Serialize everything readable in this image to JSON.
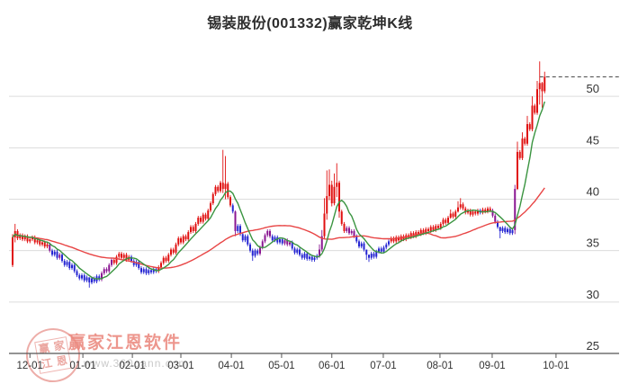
{
  "title": "锡装股份(001332)赢家乾坤K线",
  "watermark": {
    "brand": "赢家江恩软件",
    "url": "www.360gann.com",
    "seal_chars": [
      "赢",
      "家",
      "江",
      "恩"
    ]
  },
  "colors": {
    "up_candle": "#e01010",
    "down_candle": "#2525d2",
    "pivot_candle": "#8a1692",
    "ma_short": "#3a9440",
    "ma_long": "#e84545",
    "grid": "#dcdcdc",
    "axis": "#555555",
    "tick_label": "#333333",
    "dashed_line": "#555555",
    "background": "#ffffff",
    "title_color": "#2d2d2d"
  },
  "chart_data": {
    "type": "candlestick",
    "title": "锡装股份(001332)赢家乾坤K线",
    "y_ticks": [
      25,
      30,
      35,
      40,
      45,
      50
    ],
    "ylim": [
      25,
      55
    ],
    "y_axis_side": "right",
    "grid": true,
    "x_ticks": [
      {
        "label": "12-01",
        "day": 7
      },
      {
        "label": "01-01",
        "day": 28.4
      },
      {
        "label": "02-01",
        "day": 48.4
      },
      {
        "label": "03-01",
        "day": 68
      },
      {
        "label": "04-01",
        "day": 88.4
      },
      {
        "label": "05-01",
        "day": 108.7
      },
      {
        "label": "06-01",
        "day": 129
      },
      {
        "label": "07-01",
        "day": 149.8
      },
      {
        "label": "08-01",
        "day": 172.7
      },
      {
        "label": "09-01",
        "day": 193.8
      },
      {
        "label": "10-01",
        "day": 219.6
      }
    ],
    "last_price": 51.9,
    "first_open": 33.6,
    "default_wick": 0.18,
    "ma_short_period": 8,
    "ma_long_period": 42,
    "closes": [
      36.3,
      36.9,
      36.2,
      36.5,
      36.1,
      36.4,
      35.9,
      36.1,
      36.3,
      35.8,
      36.0,
      35.6,
      35.8,
      35.4,
      35.6,
      35.0,
      34.6,
      34.9,
      34.3,
      34.6,
      34.0,
      33.6,
      33.9,
      33.3,
      33.6,
      33.0,
      32.6,
      32.3,
      32.6,
      32.1,
      32.4,
      31.9,
      32.3,
      32.0,
      32.5,
      32.2,
      32.8,
      33.2,
      33.0,
      33.6,
      34.1,
      33.8,
      34.4,
      34.7,
      34.3,
      34.6,
      34.1,
      34.4,
      34.0,
      33.6,
      33.9,
      33.3,
      32.9,
      33.2,
      32.8,
      33.1,
      32.9,
      33.2,
      33.0,
      33.4,
      33.8,
      34.3,
      34.0,
      34.6,
      35.1,
      34.8,
      35.6,
      36.2,
      35.8,
      36.4,
      36.1,
      36.8,
      37.3,
      36.9,
      37.6,
      38.2,
      37.8,
      38.5,
      38.1,
      38.9,
      39.6,
      40.5,
      41.2,
      40.8,
      41.6,
      41.0,
      41.5,
      40.2,
      39.4,
      38.8,
      36.9,
      37.4,
      36.6,
      36.0,
      36.4,
      35.6,
      35.0,
      34.5,
      35.0,
      34.7,
      35.3,
      35.9,
      36.5,
      36.9,
      36.4,
      36.0,
      36.3,
      35.8,
      36.1,
      35.7,
      36.0,
      35.6,
      35.8,
      35.2,
      34.8,
      35.1,
      34.6,
      34.3,
      34.7,
      34.2,
      34.4,
      34.1,
      34.3,
      34.5,
      35.1,
      36.4,
      38.6,
      40.3,
      41.4,
      39.6,
      41.2,
      41.6,
      38.8,
      37.6,
      36.9,
      37.2,
      36.7,
      36.9,
      36.4,
      35.9,
      35.4,
      35.7,
      35.1,
      34.6,
      34.3,
      34.7,
      34.4,
      34.9,
      35.2,
      34.9,
      35.3,
      35.6,
      35.9,
      36.2,
      35.9,
      36.3,
      36.0,
      36.4,
      36.1,
      36.5,
      36.3,
      36.7,
      36.4,
      36.8,
      36.6,
      37.0,
      36.7,
      37.1,
      36.9,
      37.3,
      37.0,
      37.4,
      37.2,
      37.6,
      38.0,
      37.7,
      38.2,
      38.6,
      38.3,
      38.8,
      39.2,
      39.5,
      39.1,
      38.7,
      38.9,
      38.5,
      38.8,
      38.6,
      38.9,
      38.7,
      39.0,
      38.8,
      39.1,
      38.9,
      38.4,
      37.8,
      37.3,
      36.9,
      37.2,
      36.8,
      37.1,
      36.7,
      37.0,
      41.0,
      44.6,
      44.0,
      45.9,
      45.4,
      47.3,
      46.8,
      49.1,
      48.4,
      50.7,
      51.3,
      50.5,
      51.9
    ],
    "candle_colors": "rrrrrrrrrrrrrrrpbbbpbbbbbbbbbbbbbbbbppppprrrrrrrbbbbbbbbbbbrrrrrrrrrrrrrrrrrrrrrrrrrrrrrrbpbbbbbbbbbpppppbbbbbpppbbbbbbbbbbbpprrrrrrrrrppppbbbbbbbbbbbbbbrrrrrrrrrrrrrrrrrrrrrrrrrrrrrrrrrrrrbrrrrppbbbbbbbprrrrrrrrrrrr",
    "wick_overrides": {
      "0": [
        36.6,
        33.4
      ],
      "1": [
        37.6,
        35.8
      ],
      "31": [
        32.4,
        31.4
      ],
      "85": [
        44.8,
        40.6
      ],
      "86": [
        44.2,
        40.0
      ],
      "90": [
        38.9,
        36.4
      ],
      "97": [
        35.2,
        34.0
      ],
      "124": [
        35.6,
        34.3
      ],
      "125": [
        37.0,
        34.9
      ],
      "126": [
        40.1,
        36.2
      ],
      "127": [
        42.8,
        38.0
      ],
      "128": [
        42.9,
        39.9
      ],
      "129": [
        41.8,
        39.3
      ],
      "130": [
        42.5,
        39.4
      ],
      "131": [
        43.5,
        40.2
      ],
      "132": [
        41.8,
        38.2
      ],
      "143": [
        34.9,
        34.1
      ],
      "144": [
        34.6,
        33.9
      ],
      "177": [
        39.0,
        38.1
      ],
      "180": [
        39.8,
        38.7
      ],
      "181": [
        40.1,
        39.0
      ],
      "197": [
        37.3,
        36.2
      ],
      "203": [
        41.4,
        36.6
      ],
      "204": [
        45.6,
        40.9
      ],
      "206": [
        46.5,
        43.8
      ],
      "208": [
        48.1,
        45.2
      ],
      "210": [
        50.0,
        46.6
      ],
      "212": [
        51.5,
        48.2
      ],
      "213": [
        53.4,
        49.2
      ],
      "214": [
        51.4,
        48.9
      ],
      "215": [
        52.4,
        50.3
      ]
    }
  }
}
